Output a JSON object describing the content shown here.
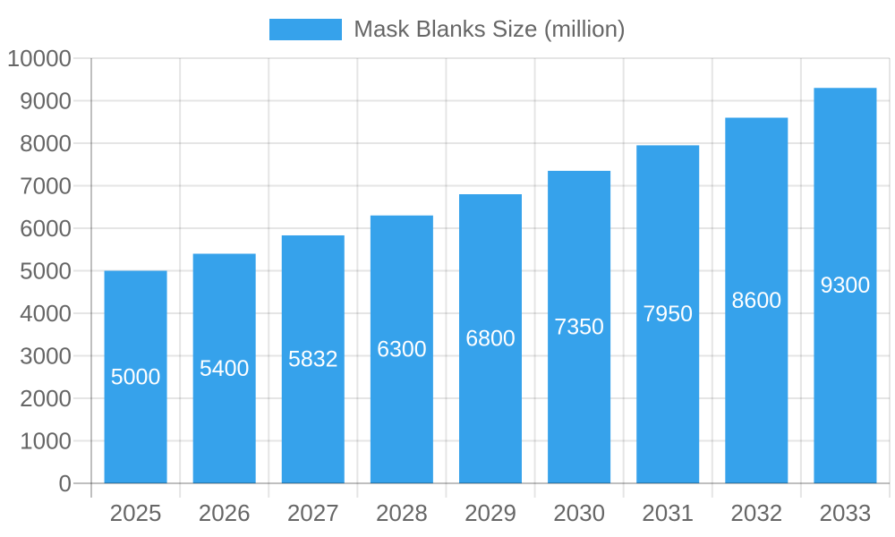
{
  "legend": {
    "position": "top"
  },
  "chart_data": {
    "type": "bar",
    "title": "",
    "xlabel": "",
    "ylabel": "",
    "categories": [
      "2025",
      "2026",
      "2027",
      "2028",
      "2029",
      "2030",
      "2031",
      "2032",
      "2033"
    ],
    "series": [
      {
        "name": "Mask Blanks Size (million)",
        "values": [
          5000,
          5400,
          5832,
          6300,
          6800,
          7350,
          7950,
          8600,
          9300
        ]
      }
    ],
    "ylim": [
      0,
      10000
    ],
    "yticks": [
      0,
      1000,
      2000,
      3000,
      4000,
      5000,
      6000,
      7000,
      8000,
      9000,
      10000
    ],
    "grid": true,
    "legend_position": "top",
    "bar_labels_inside": true,
    "colors": {
      "bar": "#36A2EB",
      "bar_label_text": "#FFFFFF",
      "axis_text": "#666666",
      "grid_line": "rgba(0,0,0,0.10)",
      "axis_line": "rgba(0,0,0,0.25)"
    }
  }
}
